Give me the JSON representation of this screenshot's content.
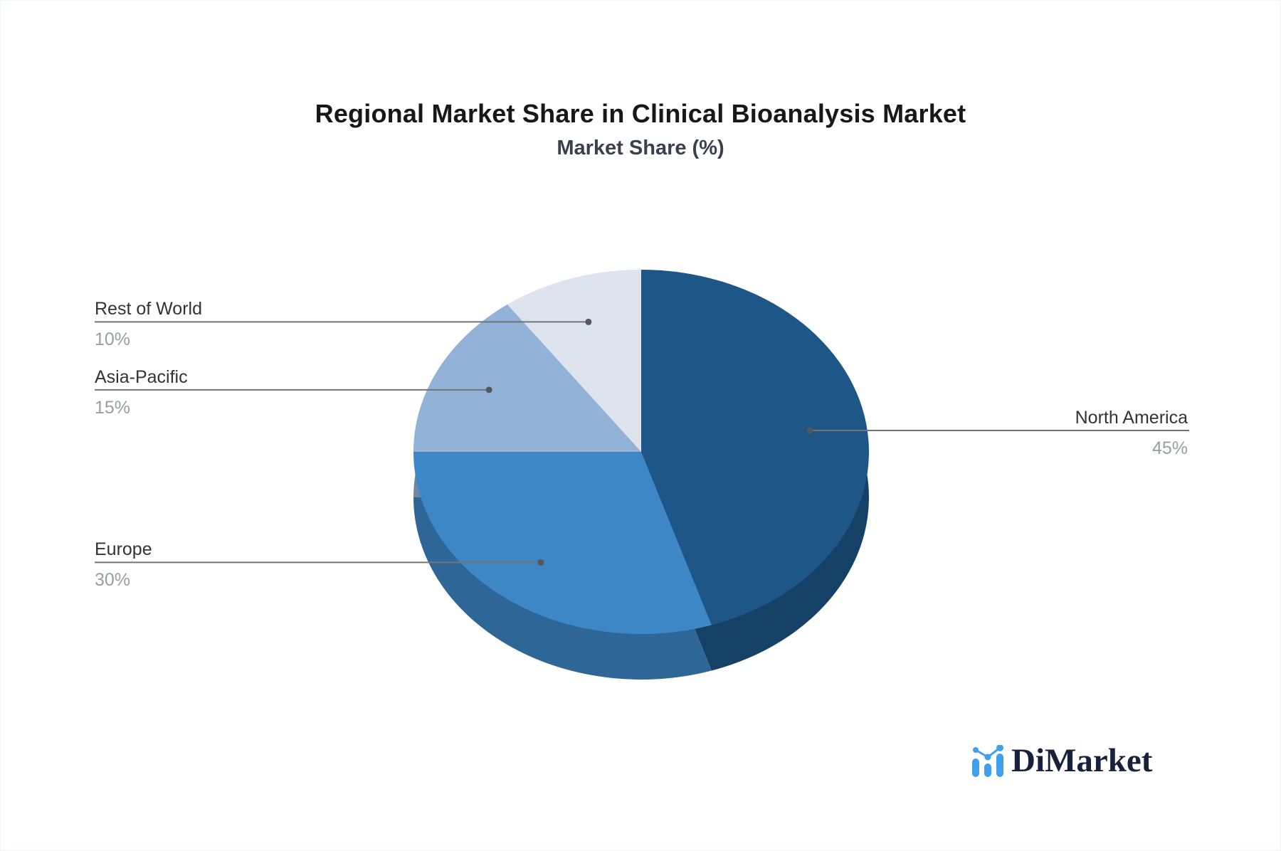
{
  "page": {
    "background": "#ffffff",
    "border_color": "#f2f5f9"
  },
  "chart_data": {
    "type": "pie",
    "title": "Regional Market Share in Clinical Bioanalysis Market",
    "subtitle": "Market Share (%)",
    "unit": "%",
    "direction": "clockwise",
    "start_angle": 0,
    "effect_3d": true,
    "legend_position": "callout-labels",
    "slices": [
      {
        "label": "North America",
        "value": 45,
        "pct_label": "45%",
        "color": "#1d5687"
      },
      {
        "label": "Europe",
        "value": 30,
        "pct_label": "30%",
        "color": "#3d87c7"
      },
      {
        "label": "Asia-Pacific",
        "value": 15,
        "pct_label": "15%",
        "color": "#93b2d8"
      },
      {
        "label": "Rest of World",
        "value": 10,
        "pct_label": "10%",
        "color": "#dee4ee"
      }
    ],
    "label_text_color": "#333333",
    "percent_text_color": "#9a9da1",
    "leader_line_color": "#737373",
    "leader_dot_color": "#55585c"
  },
  "logo": {
    "text": "DiMarket",
    "icon": "bar-chart-trend-icon",
    "icon_color": "#429ff0",
    "text_color": "#16213b"
  }
}
